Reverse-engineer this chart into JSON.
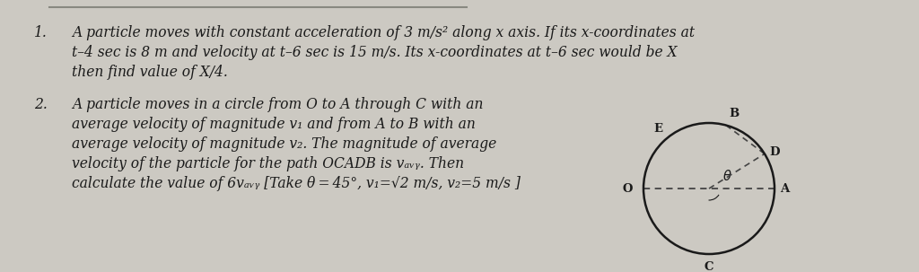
{
  "bg_color": "#ccc9c2",
  "text_color": "#1a1a1a",
  "p1_num": "1.",
  "p1_line1": "A particle moves with constant acceleration of 3 m/s² along x axis. If its x-coordinates at",
  "p1_line2": "t–4 sec is 8 m and velocity at t–6 sec is 15 m/s. Its x-coordinates at t–6 sec would be X",
  "p1_line3": "then find value of X/4.",
  "p2_num": "2.",
  "p2_line1": "A particle moves in a circle from O to A through C with an",
  "p2_line2": "average velocity of magnitude v₁ and from A to B with an",
  "p2_line3": "average velocity of magnitude v₂. The magnitude of average",
  "p2_line4": "velocity of the particle for the path OCADB is vₐᵥᵧ. Then",
  "p2_line5": "calculate the value of 6vₐᵥᵧ [Take θ = 45°, v₁=√2 m/s, v₂=5 m/s ]",
  "font_size": 11.2,
  "font_size_diag": 9.5,
  "line_color": "#1a1a1a",
  "dashed_color": "#444444",
  "circle_bg": "#e8e4df"
}
